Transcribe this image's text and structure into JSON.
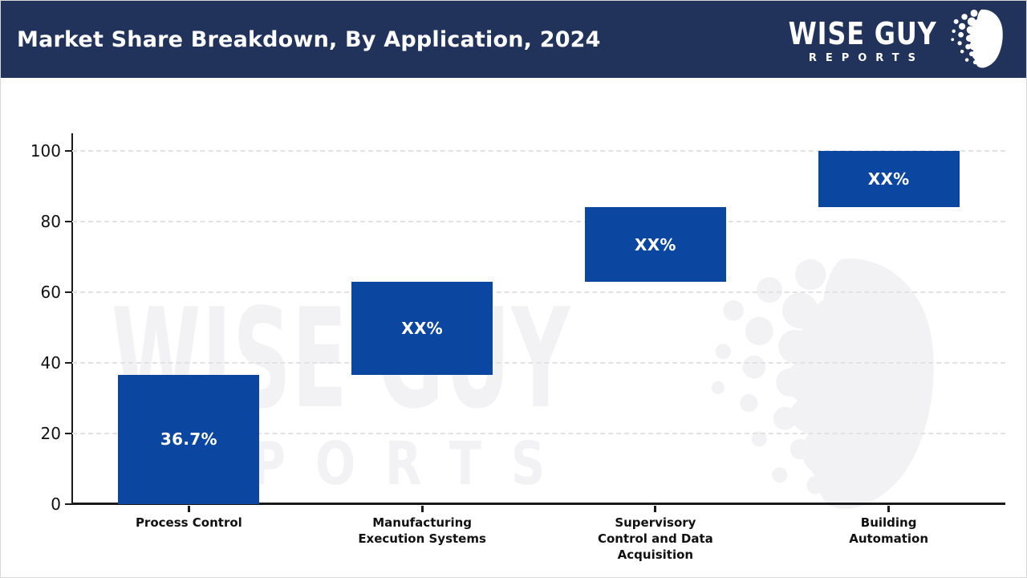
{
  "header": {
    "title": "Market Share Breakdown, By Application, 2024",
    "bg_color": "#21325b",
    "brand": {
      "line1": "WISE GUY",
      "line2": "REPORTS"
    }
  },
  "watermark": {
    "line1": "WISE GUY",
    "line2": "REPORTS"
  },
  "chart_data": {
    "type": "bar",
    "subtype": "waterfall-segmented",
    "title": "Market Share Breakdown, By Application, 2024",
    "categories": [
      [
        "Process Control"
      ],
      [
        "Manufacturing",
        "Execution Systems"
      ],
      [
        "Supervisory",
        "Control and Data",
        "Acquisition"
      ],
      [
        "Building",
        "Automation"
      ]
    ],
    "segments": [
      {
        "name": "Process Control",
        "start": 0,
        "end": 36.7,
        "label": "36.7%"
      },
      {
        "name": "Manufacturing Execution Systems",
        "start": 36.7,
        "end": 63,
        "label": "XX%"
      },
      {
        "name": "Supervisory Control and Data Acquisition",
        "start": 63,
        "end": 84,
        "label": "XX%"
      },
      {
        "name": "Building Automation",
        "start": 84,
        "end": 100,
        "label": "XX%"
      }
    ],
    "xlabel": "",
    "ylabel": "",
    "ylim": [
      0,
      105
    ],
    "yticks": [
      0,
      20,
      40,
      60,
      80,
      100
    ],
    "grid": "horizontal-dashed",
    "legend": "none",
    "bar_color": "#0b46a1",
    "bar_label_color": "#ffffff",
    "axis_color": "#1a1a1a",
    "grid_color": "#e2e2e2"
  }
}
